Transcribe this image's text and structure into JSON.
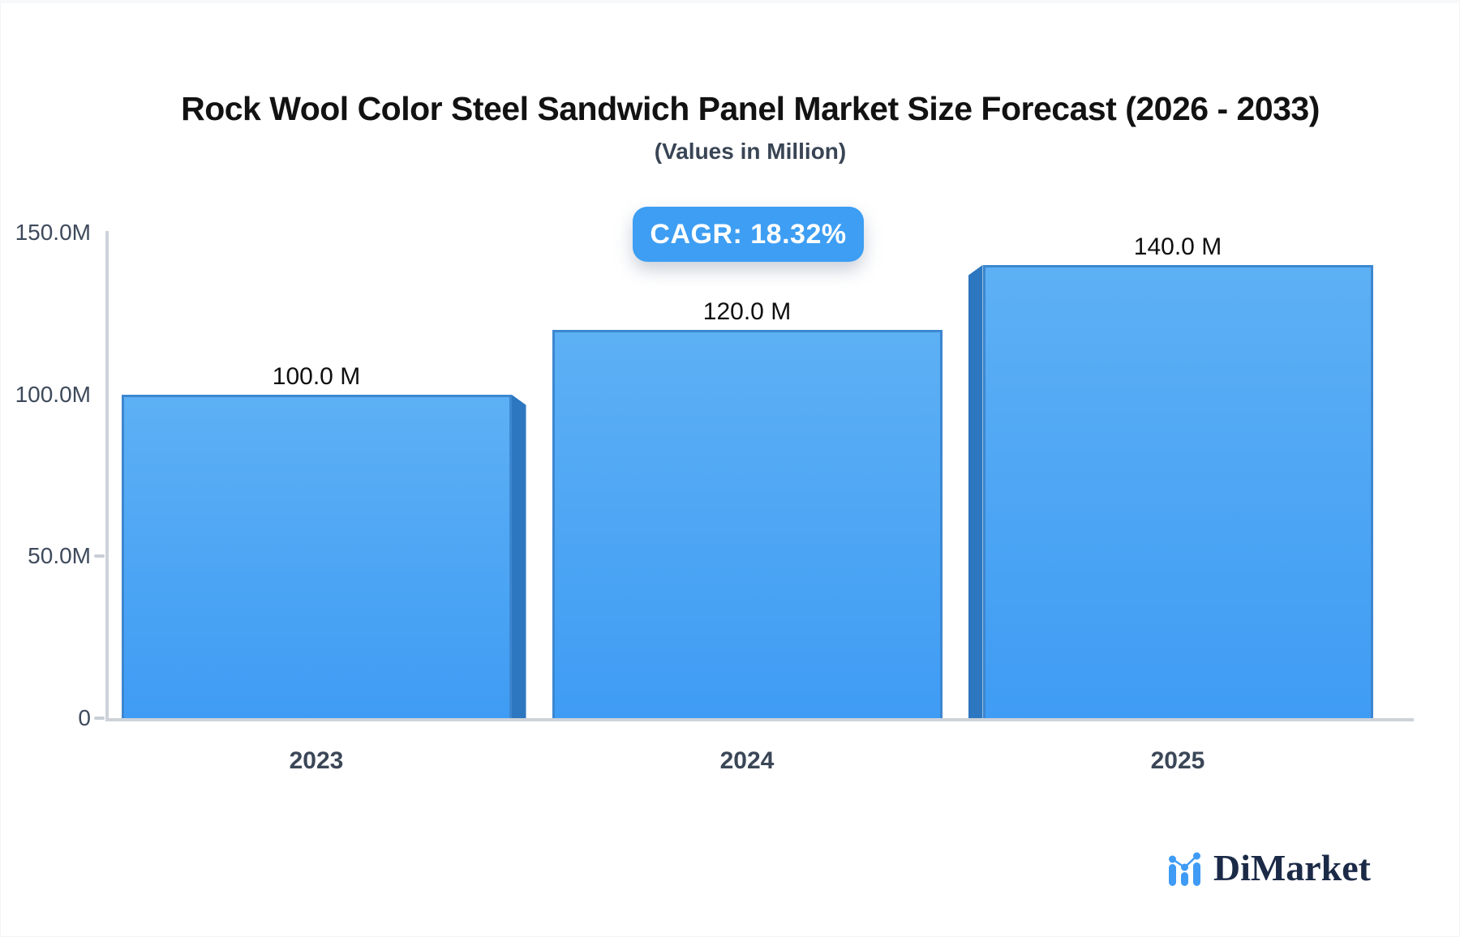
{
  "page": {
    "background": "#ffffff"
  },
  "header": {
    "title": "Rock Wool Color Steel Sandwich Panel Market Size Forecast (2026 - 2033)",
    "subtitle": "(Values in Million)"
  },
  "cagr_badge": {
    "label": "CAGR: 18.32%",
    "color": "#3d9ef3",
    "text_color": "#ffffff"
  },
  "chart_data": {
    "type": "bar",
    "title": "Rock Wool Color Steel Sandwich Panel Market Size Forecast (2026 - 2033)",
    "subtitle": "(Values in Million)",
    "unit": "Million",
    "categories": [
      "2023",
      "2024",
      "2025"
    ],
    "values": [
      100,
      120,
      140
    ],
    "data_labels": [
      "100.0 M",
      "120.0 M",
      "140.0 M"
    ],
    "cagr_percent": 18.32,
    "xlabel": "",
    "ylabel": "",
    "ylim": [
      0,
      150
    ],
    "yticks": [
      {
        "value": 150,
        "label": "150.0M",
        "dash": false
      },
      {
        "value": 100,
        "label": "100.0M",
        "dash": false
      },
      {
        "value": 50,
        "label": "50.0M",
        "dash": true
      },
      {
        "value": 0,
        "label": "0",
        "dash": true
      }
    ],
    "legend": "none",
    "grid": false,
    "style_3d": true,
    "colors": {
      "bar_gradient_top": "#5db0f4",
      "bar_gradient_bottom": "#3f9cf4",
      "bar_edge": "#3d87d0",
      "bar_side_3d": "#2d77c0",
      "axis_line": "#ced3da"
    }
  },
  "watermark": {
    "icon": "dimarket-logo-icon",
    "brand": "DiMarket",
    "brand_color": "#1b2a47",
    "icon_color": "#3f9bf5"
  }
}
